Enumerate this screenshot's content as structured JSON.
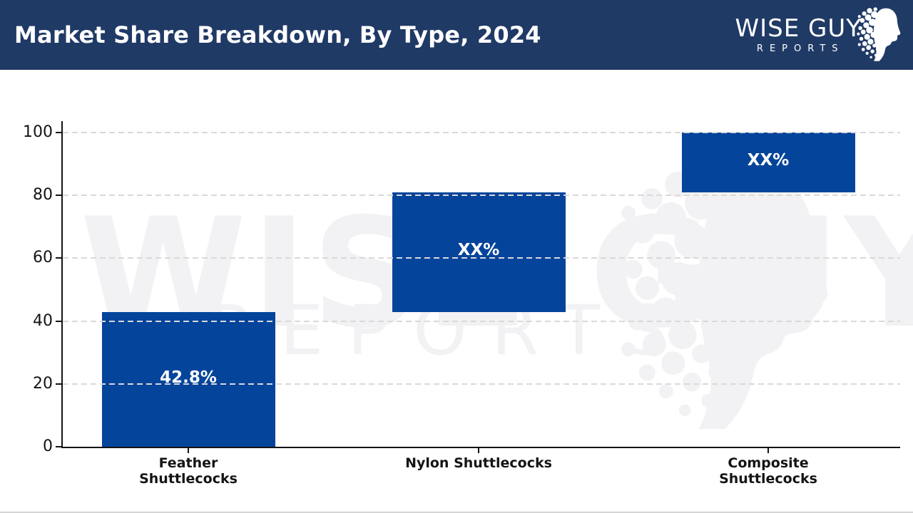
{
  "header": {
    "title": "Market Share Breakdown, By Type, 2024",
    "bg_color": "#203A66",
    "logo": {
      "wordmark": "WISE GUY",
      "subtitle": "REPORTS",
      "face_icon": "dotted-head-profile"
    }
  },
  "watermark": {
    "wordmark": "WISE GUY",
    "subtitle": "REPORTS",
    "face_icon": "dotted-head-profile",
    "color": "#f2f2f4"
  },
  "chart_data": {
    "type": "bar",
    "variant": "waterfall",
    "title": "Market Share Breakdown, By Type, 2024",
    "categories": [
      "Feather Shuttlecocks",
      "Nylon Shuttlecocks",
      "Composite Shuttlecocks"
    ],
    "categories_lines": [
      [
        "Feather",
        "Shuttlecocks"
      ],
      [
        "Nylon Shuttlecocks"
      ],
      [
        "Composite",
        "Shuttlecocks"
      ]
    ],
    "series": [
      {
        "name": "Market share (%)",
        "segments": [
          {
            "category": "Feather Shuttlecocks",
            "start": 0,
            "end": 42.8,
            "label": "42.8%"
          },
          {
            "category": "Nylon Shuttlecocks",
            "start": 42.8,
            "end": 81,
            "label": "XX%"
          },
          {
            "category": "Composite Shuttlecocks",
            "start": 81,
            "end": 100,
            "label": "XX%"
          }
        ]
      }
    ],
    "ylim": [
      0,
      100
    ],
    "yticks": [
      0,
      20,
      40,
      60,
      80,
      100
    ],
    "xlabel": "",
    "ylabel": "",
    "grid": {
      "axis": "y",
      "style": "dashed",
      "color": "#d9d9d9",
      "drawn_above_bars": true
    },
    "legend": null,
    "bar_color": "#05449B",
    "value_label_color": "#ffffff",
    "axis_color": "#141414"
  }
}
